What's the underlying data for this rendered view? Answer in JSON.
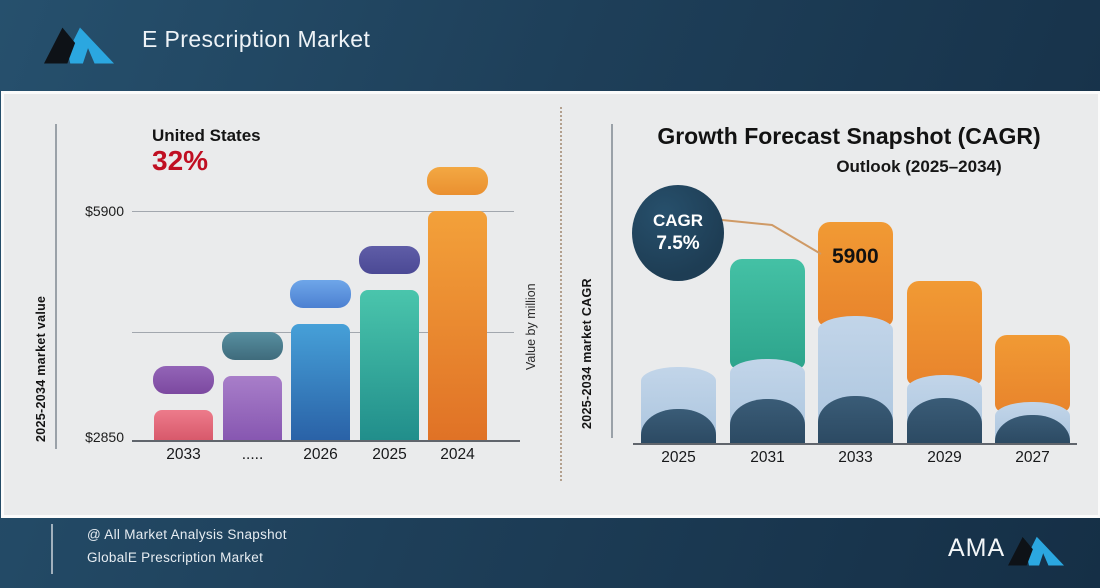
{
  "header": {
    "title": "E Prescription Market",
    "logo": "ama-mountain-logo"
  },
  "footer": {
    "line1": "@ All Market Analysis Snapshot",
    "line2": "GlobalE Prescription Market",
    "brand": "AMA",
    "logo": "ama-mountain-logo"
  },
  "colors": {
    "header_navy": "#1e3f59",
    "panel_gray": "#eaebec",
    "accent_red": "#c00f22",
    "badge_navy": "#1f3e55",
    "connector_tan": "#cf9a66",
    "logo_blue": "#2ba7e0",
    "logo_black": "#0e1217"
  },
  "chart_data": [
    {
      "type": "bar",
      "title": "United States",
      "highlight": "32%",
      "ylabel": "2025-2034 market value",
      "ylabel_right": "Value by million",
      "yticks": [
        "$2850",
        "$5900"
      ],
      "ylim": [
        2850,
        5900
      ],
      "gridlines_y_values": [
        5900,
        4375
      ],
      "grid": "partial",
      "legend": "none",
      "categories": [
        "2033",
        ".....",
        "2026",
        "2025",
        "2024"
      ],
      "values": [
        3250,
        3700,
        4400,
        4850,
        5900
      ],
      "bar_colors": [
        [
          "#ed7b8b",
          "#d8596b"
        ],
        [
          "#a87ec9",
          "#8757b1"
        ],
        [
          "#46a0d8",
          "#2a62a7"
        ],
        [
          "#4ac5ac",
          "#218e8b"
        ],
        [
          "#f3a13a",
          "#e07226"
        ]
      ],
      "pill_colors": [
        [
          "#9364b7",
          "#7c49a0"
        ],
        [
          "#578fa0",
          "#3f6b7c"
        ],
        [
          "#6ea6e9",
          "#4c80d1"
        ],
        [
          "#5f5da7",
          "#4b4995"
        ],
        [
          "#f3a843",
          "#ea9030"
        ]
      ]
    },
    {
      "type": "stacked-bar",
      "title": "Growth Forecast Snapshot (CAGR)",
      "subtitle": "Outlook (2025–2034)",
      "ylabel": "2025-2034 market CAGR",
      "grid": "off",
      "legend": "none",
      "cagr_badge": {
        "label": "CAGR",
        "value": "7.5%"
      },
      "annotated_total": {
        "category": "2033",
        "label": "5900"
      },
      "categories": [
        "2025",
        "2031",
        "2033",
        "2029",
        "2027"
      ],
      "series": [
        {
          "name": "base-dome",
          "values": [
            910,
            1175,
            1255,
            1200,
            750
          ]
        },
        {
          "name": "mid-band",
          "values": [
            1120,
            1070,
            2135,
            615,
            345
          ]
        },
        {
          "name": "top-cap",
          "values": [
            0,
            2665,
            2510,
            2510,
            1785
          ]
        }
      ],
      "totals_estimated": [
        2030,
        4910,
        5900,
        4325,
        2880
      ],
      "base_colors": [
        "#3a5c77",
        "#2c4a63"
      ],
      "mid_colors": [
        "#c2d5e9",
        "#abc5de"
      ],
      "cap_colors": [
        null,
        [
          "#44c1a5",
          "#2da48c"
        ],
        [
          "#f19a34",
          "#e8842c"
        ],
        [
          "#f19a34",
          "#e8842c"
        ],
        [
          "#f19a34",
          "#e8842c"
        ]
      ]
    }
  ]
}
